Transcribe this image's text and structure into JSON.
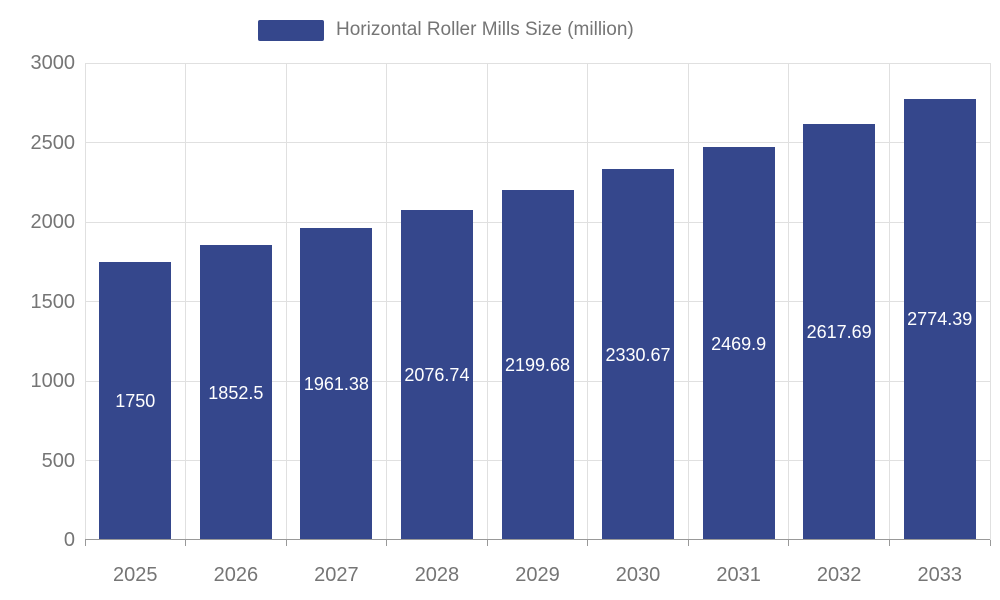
{
  "chart_data": {
    "type": "bar",
    "title": "",
    "legend": "Horizontal Roller Mills Size (million)",
    "legend_position": "top",
    "categories": [
      "2025",
      "2026",
      "2027",
      "2028",
      "2029",
      "2030",
      "2031",
      "2032",
      "2033"
    ],
    "series": [
      {
        "name": "Horizontal Roller Mills Size (million)",
        "values": [
          1750,
          1852.5,
          1961.38,
          2076.74,
          2199.68,
          2330.67,
          2469.9,
          2617.69,
          2774.39
        ],
        "labels": [
          "1750",
          "1852.5",
          "1961.38",
          "2076.74",
          "2199.68",
          "2330.67",
          "2469.9",
          "2617.69",
          "2774.39"
        ]
      }
    ],
    "xlabel": "",
    "ylabel": "",
    "ylim": [
      0,
      3000
    ],
    "yticks": [
      0,
      500,
      1000,
      1500,
      2000,
      2500,
      3000
    ],
    "grid": true,
    "colors": {
      "bar": "#35478c",
      "grid": "#e0e0e0",
      "axis": "#999999",
      "tick_text": "#757575",
      "value_label_text": "#ffffff",
      "background": "#ffffff"
    }
  }
}
